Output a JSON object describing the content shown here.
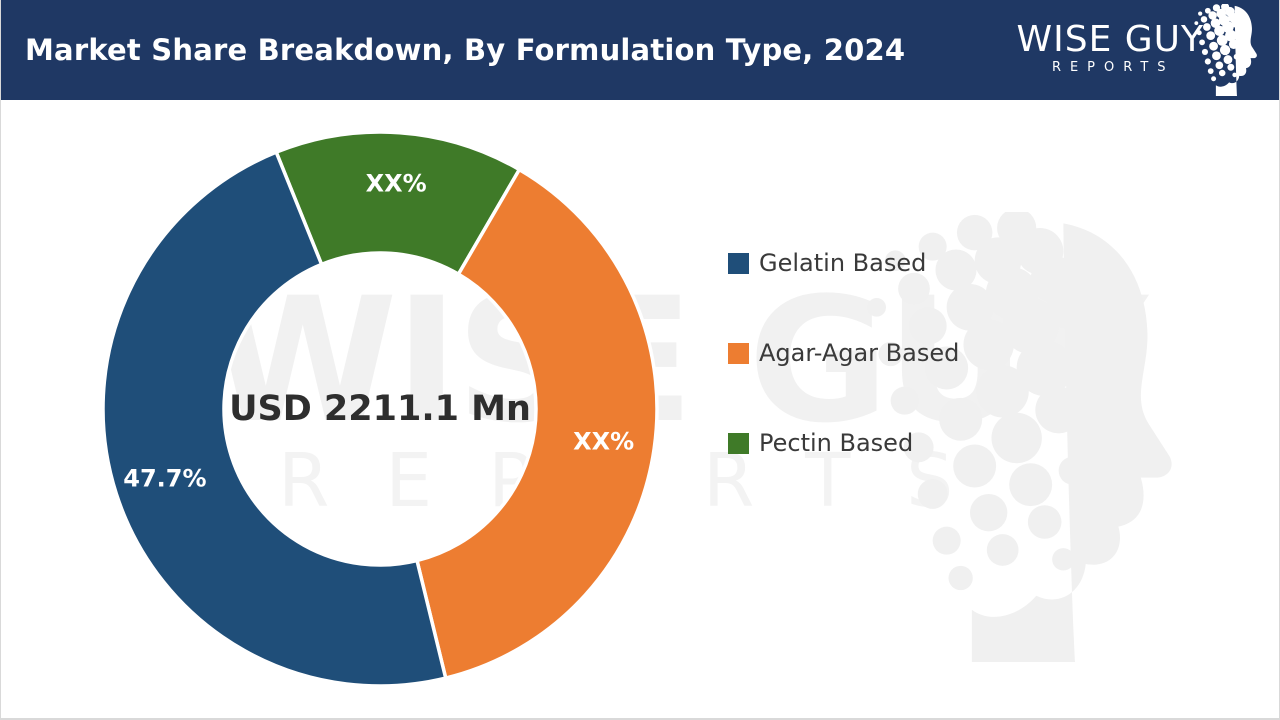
{
  "header": {
    "title": "Market Share Breakdown, By Formulation Type, 2024",
    "background_color": "#1f3864",
    "logo": {
      "brand_line1": "WISE GUY",
      "brand_line2": "REPORTS"
    }
  },
  "chart_data": {
    "type": "donut",
    "title": "Market Share Breakdown, By Formulation Type, 2024",
    "center_label": "USD 2211.1 Mn",
    "legend_position": "right",
    "start_angle_deg": 112,
    "direction": "clockwise",
    "draw_order": [
      2,
      1,
      0
    ],
    "slices": [
      {
        "label": "Gelatin Based",
        "display_pct": "47.7%",
        "value_pct": 47.7,
        "estimated": false,
        "color": "#1f4e79"
      },
      {
        "label": "Agar-Agar Based",
        "display_pct": "XX%",
        "value_pct": 37.8,
        "estimated": true,
        "color": "#ed7d31"
      },
      {
        "label": "Pectin Based",
        "display_pct": "XX%",
        "value_pct": 14.5,
        "estimated": true,
        "color": "#3f7a28"
      }
    ],
    "slice_separator_color": "#ffffff"
  },
  "watermark": {
    "line1": "WISE GUY",
    "line2": "REPORTS"
  },
  "colors": {
    "center_label_color": "#2e2e2e",
    "legend_text_color": "#3a3a3a",
    "frame_border": "#d9d9d9",
    "watermark_gray": "#f1f1f1"
  }
}
